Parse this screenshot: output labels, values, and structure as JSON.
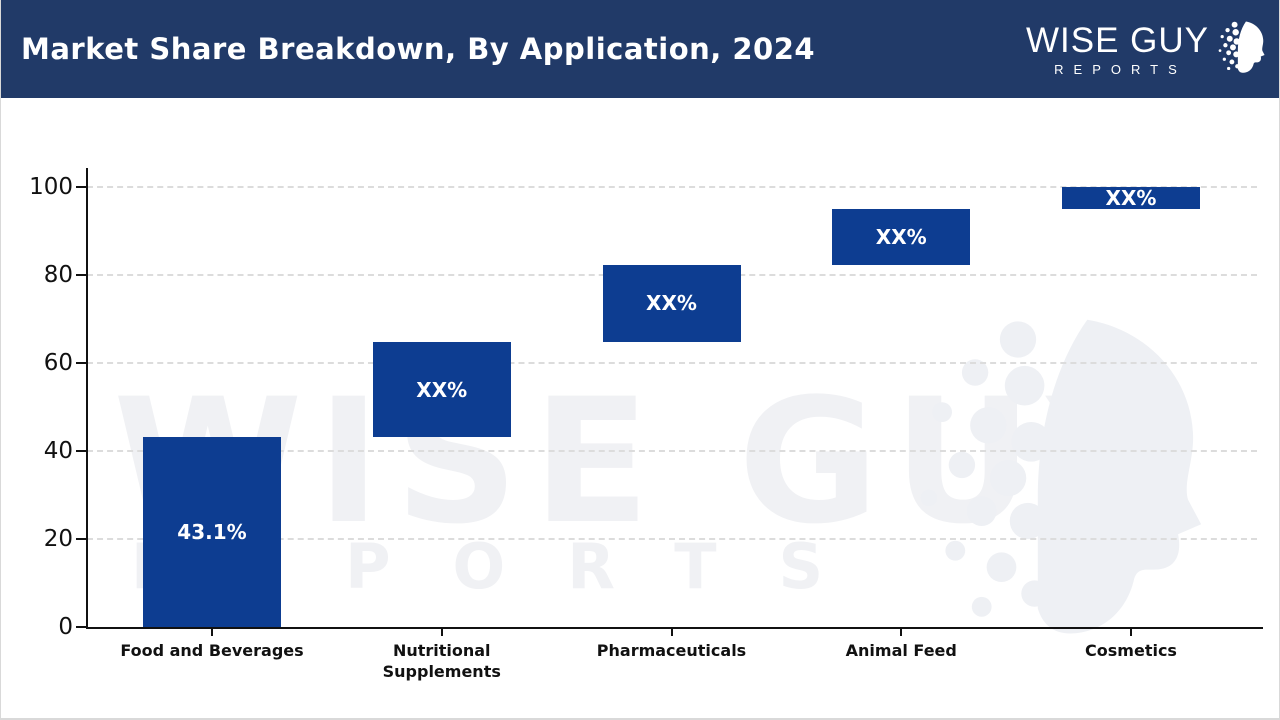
{
  "header": {
    "title": "Market Share Breakdown, By Application, 2024",
    "logo": {
      "line1": "WISE GUY",
      "line2": "REPORTS"
    }
  },
  "watermark": {
    "line1": "WISE GUY",
    "line2": "REPORTS"
  },
  "chart_data": {
    "type": "bar",
    "subtype": "waterfall",
    "title": "Market Share Breakdown, By Application, 2024",
    "categories": [
      "Food and Beverages",
      "Nutritional Supplements",
      "Pharmaceuticals",
      "Animal Feed",
      "Cosmetics"
    ],
    "segments": [
      {
        "category": "Food and Beverages",
        "label": "43.1%",
        "start": 0,
        "end": 43.1
      },
      {
        "category": "Nutritional Supplements",
        "label": "XX%",
        "start": 43.1,
        "end": 64.8
      },
      {
        "category": "Pharmaceuticals",
        "label": "XX%",
        "start": 64.8,
        "end": 82.3
      },
      {
        "category": "Animal Feed",
        "label": "XX%",
        "start": 82.3,
        "end": 95.0
      },
      {
        "category": "Cosmetics",
        "label": "XX%",
        "start": 95.0,
        "end": 100.0
      }
    ],
    "yticks": [
      0,
      20,
      40,
      60,
      80,
      100
    ],
    "ylim": [
      0,
      105
    ],
    "xlabel": "",
    "ylabel": "",
    "grid": "horizontal-dashed",
    "legend": "none",
    "colors": {
      "bar": "#0d3d91",
      "grid": "#dcdcdc",
      "axis": "#111111",
      "bar_label_text": "#ffffff",
      "tick_text": "#111111",
      "header_bg": "#213a68",
      "page_bg": "#ffffff"
    }
  }
}
